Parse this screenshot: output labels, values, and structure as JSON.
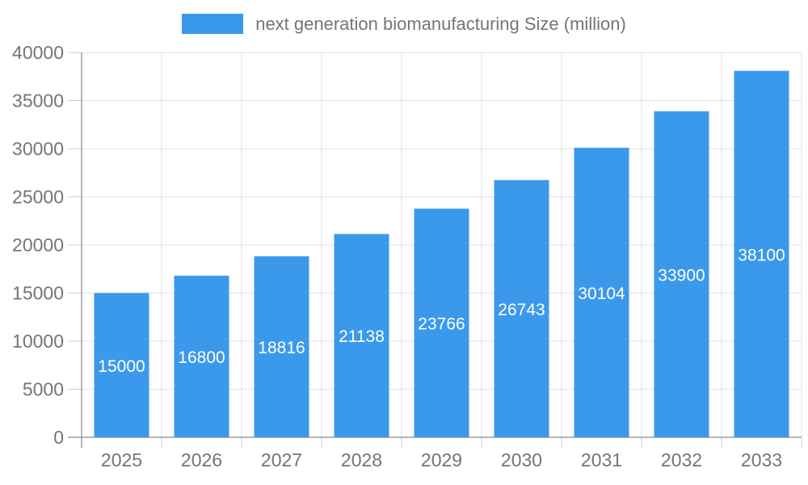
{
  "legend": {
    "label": "next generation biomanufacturing Size (million)",
    "swatch_color": "#3B99EC"
  },
  "chart_data": {
    "type": "bar",
    "title": "",
    "xlabel": "",
    "ylabel": "",
    "categories": [
      "2025",
      "2026",
      "2027",
      "2028",
      "2029",
      "2030",
      "2031",
      "2032",
      "2033"
    ],
    "series": [
      {
        "name": "next generation biomanufacturing Size (million)",
        "values": [
          15000,
          16800,
          18816,
          21138,
          23766,
          26743,
          30104,
          33900,
          38100
        ],
        "color": "#3B99EC"
      }
    ],
    "ylim": [
      0,
      40000
    ],
    "yticks": [
      0,
      5000,
      10000,
      15000,
      20000,
      25000,
      30000,
      35000,
      40000
    ],
    "grid": true,
    "legend_position": "top",
    "colors": {
      "bar": "#3B99EC",
      "bar_label_text": "#FFFFFF",
      "axis_text": "#757575",
      "axis_line": "#9E9E9E",
      "gridline": "#E2E2E2",
      "tick": "#CCCCCC",
      "background": "#FFFFFF"
    }
  }
}
